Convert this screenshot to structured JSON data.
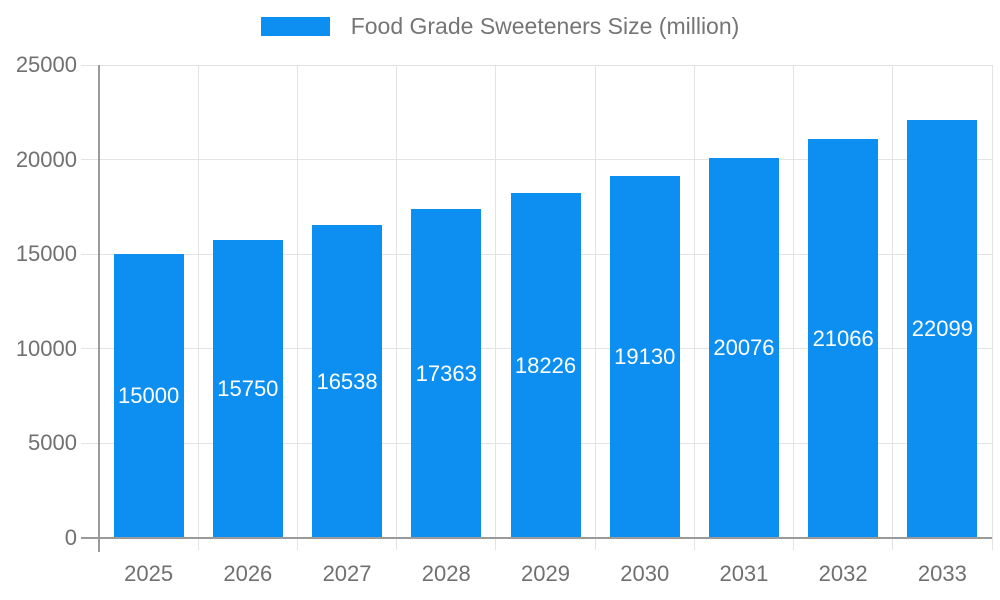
{
  "legend": {
    "label": "Food Grade Sweeteners Size (million)"
  },
  "chart_data": {
    "type": "bar",
    "title": "Food Grade Sweeteners Size (million)",
    "series_name": "Food Grade Sweeteners Size (million)",
    "categories": [
      "2025",
      "2026",
      "2027",
      "2028",
      "2029",
      "2030",
      "2031",
      "2032",
      "2033"
    ],
    "values": [
      15000,
      15750,
      16538,
      17363,
      18226,
      19130,
      20076,
      21066,
      22099
    ],
    "value_labels": [
      "15000",
      "15750",
      "16538",
      "17363",
      "18226",
      "19130",
      "20076",
      "21066",
      "22099"
    ],
    "xlabel": "",
    "ylabel": "",
    "ylim": [
      0,
      25000
    ],
    "ytick_interval": 5000,
    "yticks": [
      0,
      5000,
      10000,
      15000,
      20000,
      25000
    ],
    "ytick_labels": [
      "0",
      "5000",
      "10000",
      "15000",
      "20000",
      "25000"
    ],
    "grid": true,
    "legend_position": "top-center",
    "value_labels_position": "inside-center",
    "colors": {
      "bar": "#0d8ff2",
      "bar_value_text": "#ffffff",
      "axis_line": "#9a9a9a",
      "gridline": "#e3e3e3",
      "axis_text": "#707070",
      "legend_text": "#757575",
      "background": "#ffffff"
    }
  }
}
